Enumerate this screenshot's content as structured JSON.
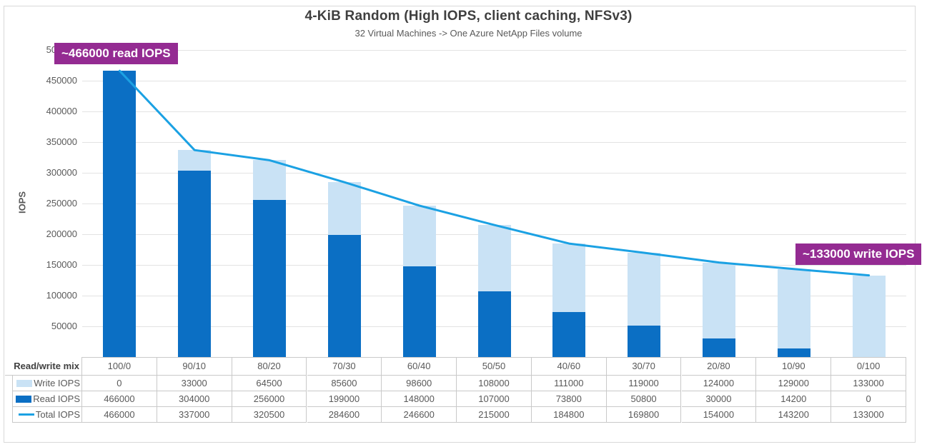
{
  "title": "4-KiB Random (High IOPS, client caching, NFSv3)",
  "subtitle": "32 Virtual Machines -> One Azure NetApp Files volume",
  "annotations": {
    "read": "~466000 read IOPS",
    "write": "~133000 write IOPS"
  },
  "colors": {
    "read_bar": "#0B6FC4",
    "write_bar": "#C9E2F5",
    "total_line": "#1BA1E3",
    "annotation_bg": "#942B92",
    "gridline": "#E3E3E3",
    "table_border": "#C9C9C9",
    "text": "#595959"
  },
  "chart_data": {
    "type": "bar",
    "subtype": "stacked-column-with-line",
    "title": "4-KiB Random (High IOPS, client caching, NFSv3)",
    "xlabel": "Read/write mix",
    "ylabel": "IOPS",
    "ylim": [
      0,
      500000
    ],
    "ytick_step": 50000,
    "grid": true,
    "legend_position": "data-table-left",
    "row_header": "Read/write mix",
    "categories": [
      "100/0",
      "90/10",
      "80/20",
      "70/30",
      "60/40",
      "50/50",
      "40/60",
      "30/70",
      "20/80",
      "10/90",
      "0/100"
    ],
    "series": [
      {
        "name": "Write IOPS",
        "type": "bar",
        "stack": "top",
        "color": "#C9E2F5",
        "values": [
          0,
          33000,
          64500,
          85600,
          98600,
          108000,
          111000,
          119000,
          124000,
          129000,
          133000
        ]
      },
      {
        "name": "Read IOPS",
        "type": "bar",
        "stack": "bottom",
        "color": "#0B6FC4",
        "values": [
          466000,
          304000,
          256000,
          199000,
          148000,
          107000,
          73800,
          50800,
          30000,
          14200,
          0
        ]
      },
      {
        "name": "Total IOPS",
        "type": "line",
        "color": "#1BA1E3",
        "values": [
          466000,
          337000,
          320500,
          284600,
          246600,
          215000,
          184800,
          169800,
          154000,
          143200,
          133000
        ]
      }
    ]
  }
}
